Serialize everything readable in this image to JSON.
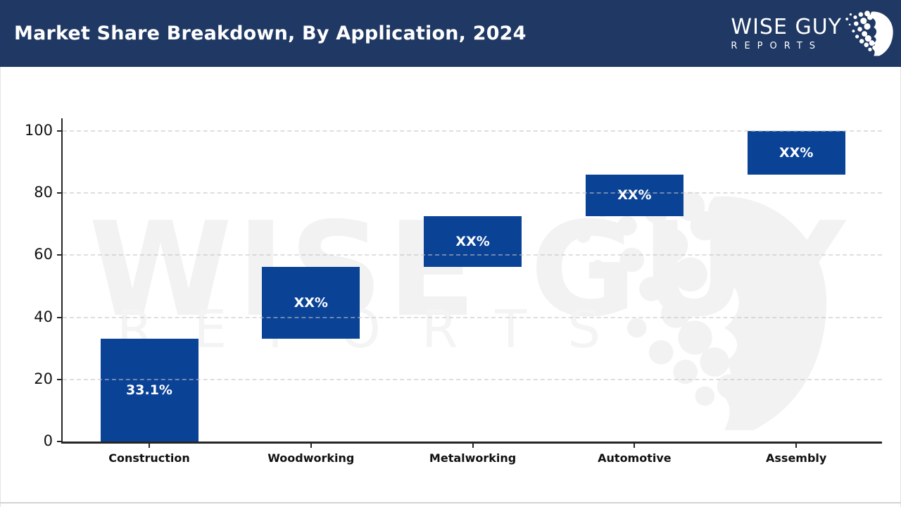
{
  "header": {
    "title": "Market Share Breakdown, By Application, 2024",
    "bg_color": "#1f3864",
    "logo": {
      "line1": "WISE GUY",
      "line2": "REPORTS",
      "head_icon": "dotted-head-profile"
    }
  },
  "watermark": {
    "line1": "WISE GUY",
    "line2": "REPORTS"
  },
  "chart_data": {
    "type": "bar",
    "subtype": "waterfall",
    "title": "Market Share Breakdown, By Application, 2024",
    "categories": [
      "Construction",
      "Woodworking",
      "Metalworking",
      "Automotive",
      "Assembly"
    ],
    "segments": [
      {
        "category": "Construction",
        "start": 0,
        "end": 33.1,
        "label": "33.1%"
      },
      {
        "category": "Woodworking",
        "start": 33.1,
        "end": 56.3,
        "label": "XX%"
      },
      {
        "category": "Metalworking",
        "start": 56.3,
        "end": 72.6,
        "label": "XX%"
      },
      {
        "category": "Automotive",
        "start": 72.6,
        "end": 85.9,
        "label": "XX%"
      },
      {
        "category": "Assembly",
        "start": 85.9,
        "end": 100,
        "label": "XX%"
      }
    ],
    "y_ticks": [
      0,
      20,
      40,
      60,
      80,
      100
    ],
    "ylim": [
      0,
      100
    ],
    "xlabel": "",
    "ylabel": "",
    "grid": "horizontal-dashed",
    "legend": "none",
    "bar_color": "#0a4296",
    "bar_label_color": "#ffffff",
    "axis_color": "#262626",
    "visible_value_labels": [
      "33.1%",
      "XX%",
      "XX%",
      "XX%",
      "XX%"
    ]
  }
}
